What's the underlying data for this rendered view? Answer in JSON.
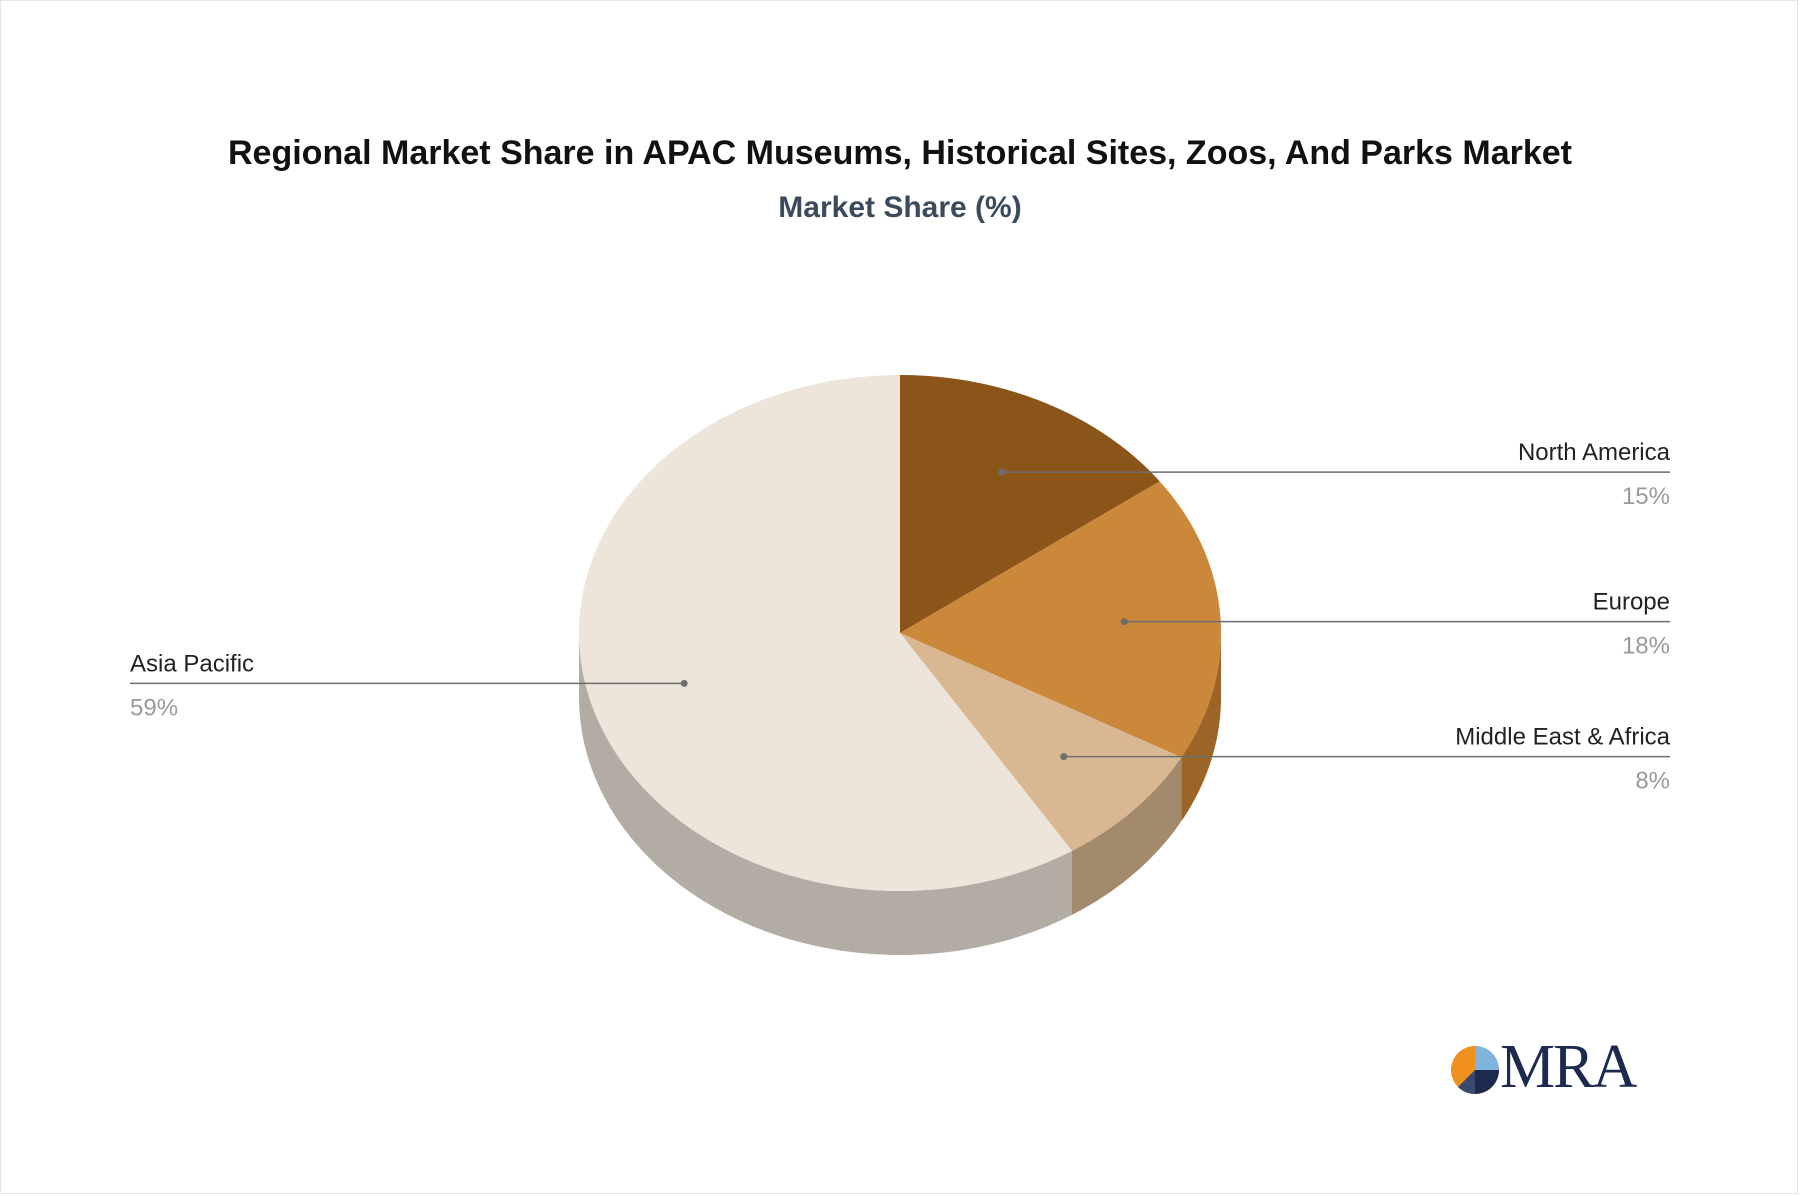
{
  "chart_data": {
    "type": "pie",
    "title": "Regional Market Share in APAC Museums, Historical Sites, Zoos, And Parks Market",
    "subtitle": "Market Share (%)",
    "slices": [
      {
        "label": "North America",
        "value": 15,
        "value_label": "15%",
        "color": "#8B5419",
        "side_color": "#6b3f10"
      },
      {
        "label": "Europe",
        "value": 18,
        "value_label": "18%",
        "color": "#CB883B",
        "side_color": "#9c6526"
      },
      {
        "label": "Middle East & Africa",
        "value": 8,
        "value_label": "8%",
        "color": "#D9B792",
        "side_color": "#a38a6c"
      },
      {
        "label": "Asia Pacific",
        "value": 59,
        "value_label": "59%",
        "color": "#EDE4DA",
        "side_color": "#b3aca5"
      }
    ],
    "style": "3d-pie",
    "legend": "callout-labels"
  },
  "brand": {
    "logo_text": "MRA",
    "colors": {
      "orange": "#F0901E",
      "navy": "#1d2a4f",
      "light_blue": "#7fb4dd"
    }
  }
}
